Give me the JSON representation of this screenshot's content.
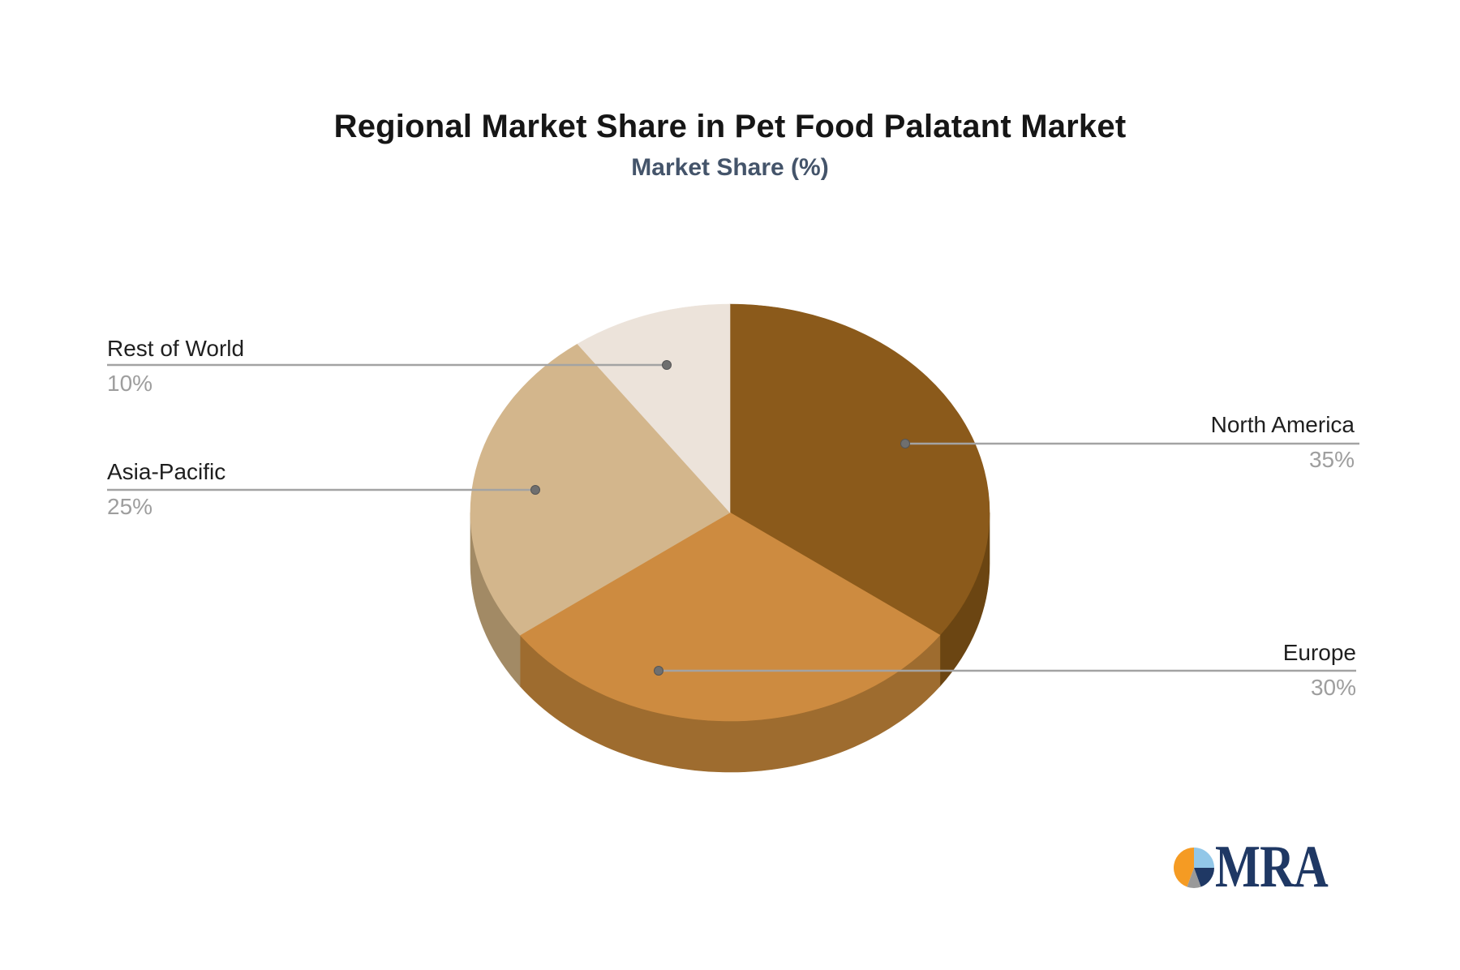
{
  "title": "Regional Market Share in Pet Food Palatant Market",
  "subtitle": "Market Share (%)",
  "chart_data": {
    "type": "pie",
    "style": "3d-pie",
    "title": "Regional Market Share in Pet Food Palatant Market",
    "subtitle": "Market Share (%)",
    "unit": "%",
    "start_angle_deg": 0,
    "direction": "clockwise",
    "legend_position": "callout-labels",
    "slices": [
      {
        "label": "North America",
        "value": 35,
        "pct_label": "35%",
        "top_color": "#8B5A1B",
        "side_color": "#6B4512",
        "callout_side": "right"
      },
      {
        "label": "Europe",
        "value": 30,
        "pct_label": "30%",
        "top_color": "#CD8B40",
        "side_color": "#9E6C2F",
        "callout_side": "right"
      },
      {
        "label": "Asia-Pacific",
        "value": 25,
        "pct_label": "25%",
        "top_color": "#D3B68C",
        "side_color": "#A28A65",
        "callout_side": "left"
      },
      {
        "label": "Rest of World",
        "value": 10,
        "pct_label": "10%",
        "top_color": "#ECE3DA",
        "side_color": "#C9BCAE",
        "callout_side": "left"
      }
    ]
  },
  "logo": {
    "text": "MRA",
    "icon_colors": {
      "orange": "#F59B23",
      "light_blue": "#92C7E8",
      "navy": "#1F3864",
      "gray": "#999999"
    }
  },
  "colors": {
    "title_text": "#161616",
    "subtitle_text": "#44546A",
    "label_text": "#1F1F1F",
    "pct_text": "#9E9E9E",
    "connector_line": "#A3A3A3",
    "connector_dot": "#6F6F6F",
    "background": "#FFFFFF"
  }
}
